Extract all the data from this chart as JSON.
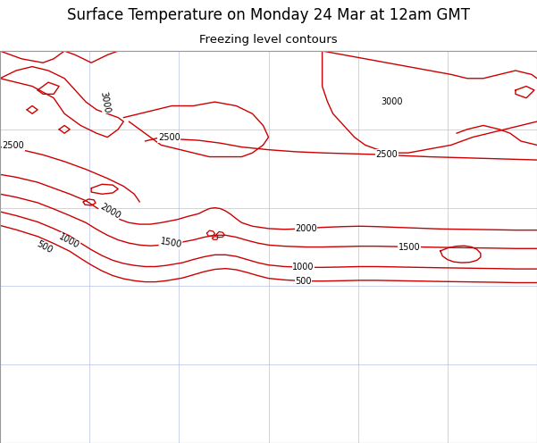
{
  "title": "Surface Temperature on Monday 24 Mar at 12am GMT",
  "subtitle": "Freezing level contours",
  "bg_color": "#ccd2ef",
  "white_bg": "#ffffff",
  "contour_color": "#cc0000",
  "grid_color": "#b8bfe8",
  "title_fontsize": 12,
  "subtitle_fontsize": 9.5,
  "label_fontsize": 7,
  "border_color": "#888888"
}
